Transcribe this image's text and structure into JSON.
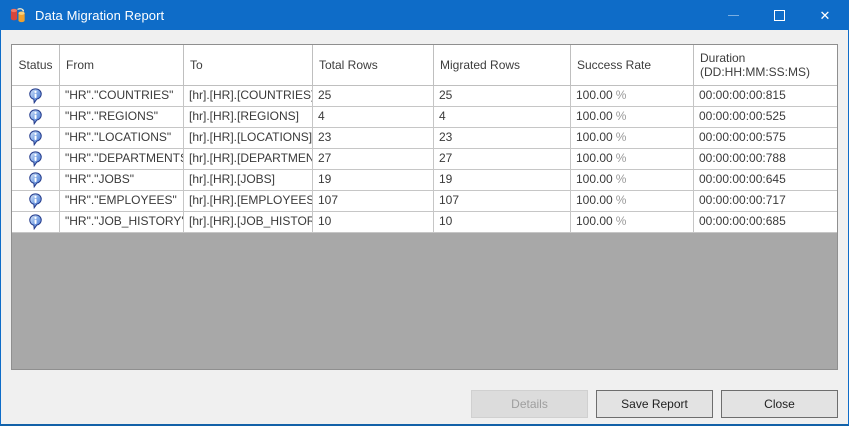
{
  "window": {
    "title": "Data Migration Report",
    "accent_color": "#0e6cc8",
    "controls": {
      "minimize": "minimize",
      "maximize": "maximize",
      "close": "close"
    }
  },
  "table": {
    "empty_area_color": "#a8a8a8",
    "columns": [
      {
        "label": "Status"
      },
      {
        "label": "From"
      },
      {
        "label": "To"
      },
      {
        "label": "Total Rows"
      },
      {
        "label": "Migrated Rows"
      },
      {
        "label": "Success Rate"
      },
      {
        "label": "Duration",
        "sublabel": "(DD:HH:MM:SS:MS)"
      }
    ],
    "rows": [
      {
        "status_icon": "info-balloon-icon",
        "from": "\"HR\".\"COUNTRIES\"",
        "to": "[hr].[HR].[COUNTRIES]",
        "total": "25",
        "migrated": "25",
        "success": "100.00",
        "unit": "%",
        "duration": "00:00:00:00:815"
      },
      {
        "status_icon": "info-balloon-icon",
        "from": "\"HR\".\"REGIONS\"",
        "to": "[hr].[HR].[REGIONS]",
        "total": "4",
        "migrated": "4",
        "success": "100.00",
        "unit": "%",
        "duration": "00:00:00:00:525"
      },
      {
        "status_icon": "info-balloon-icon",
        "from": "\"HR\".\"LOCATIONS\"",
        "to": "[hr].[HR].[LOCATIONS]",
        "total": "23",
        "migrated": "23",
        "success": "100.00",
        "unit": "%",
        "duration": "00:00:00:00:575"
      },
      {
        "status_icon": "info-balloon-icon",
        "from": "\"HR\".\"DEPARTMENTS\"",
        "to": "[hr].[HR].[DEPARTMENTS]",
        "total": "27",
        "migrated": "27",
        "success": "100.00",
        "unit": "%",
        "duration": "00:00:00:00:788"
      },
      {
        "status_icon": "info-balloon-icon",
        "from": "\"HR\".\"JOBS\"",
        "to": "[hr].[HR].[JOBS]",
        "total": "19",
        "migrated": "19",
        "success": "100.00",
        "unit": "%",
        "duration": "00:00:00:00:645"
      },
      {
        "status_icon": "info-balloon-icon",
        "from": "\"HR\".\"EMPLOYEES\"",
        "to": "[hr].[HR].[EMPLOYEES]",
        "total": "107",
        "migrated": "107",
        "success": "100.00",
        "unit": "%",
        "duration": "00:00:00:00:717"
      },
      {
        "status_icon": "info-balloon-icon",
        "from": "\"HR\".\"JOB_HISTORY\"",
        "to": "[hr].[HR].[JOB_HISTORY]",
        "total": "10",
        "migrated": "10",
        "success": "100.00",
        "unit": "%",
        "duration": "00:00:00:00:685"
      }
    ]
  },
  "buttons": {
    "details": "Details",
    "save_report": "Save Report",
    "close": "Close"
  }
}
